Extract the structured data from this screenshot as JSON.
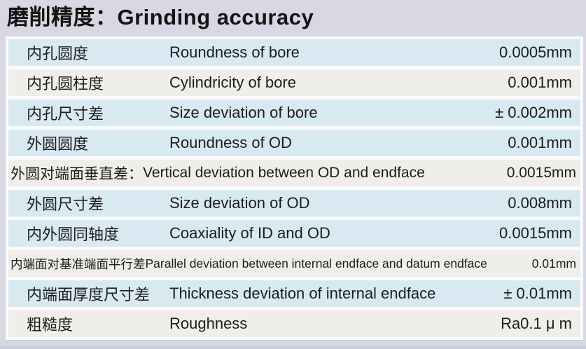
{
  "title": "磨削精度：Grinding accuracy",
  "colors": {
    "page_background": "#d7d8e3",
    "row_blue": "#d9e9f1",
    "row_gray": "#efeeeb",
    "table_frame": "#fbfbfb",
    "text": "#1c1c1c"
  },
  "table": {
    "rows": [
      {
        "cn": "内孔圆度",
        "en": "Roundness of bore",
        "value": "0.0005mm",
        "tone": "blue"
      },
      {
        "cn": "内孔圆柱度",
        "en": "Cylindricity of bore",
        "value": "0.001mm",
        "tone": "gray"
      },
      {
        "cn": "内孔尺寸差",
        "en": "Size deviation of bore",
        "value": "± 0.002mm",
        "tone": "blue"
      },
      {
        "cn": "外圆圆度",
        "en": "Roundness of OD",
        "value": "0.001mm",
        "tone": "blue"
      },
      {
        "cn": "外圆对端面垂直差：",
        "en": "Vertical deviation between OD and endface",
        "value": "0.0015mm",
        "tone": "gray"
      },
      {
        "cn": "外圆尺寸差",
        "en": "Size deviation of OD",
        "value": "0.008mm",
        "tone": "blue"
      },
      {
        "cn": "内外圆同轴度",
        "en": "Coaxiality of ID and OD",
        "value": "0.0015mm",
        "tone": "blue"
      },
      {
        "cn": "内端面对基准端面平行差",
        "en": "Parallel deviation between internal endface and datum endface",
        "value": "0.01mm",
        "tone": "gray"
      },
      {
        "cn": "内端面厚度尺寸差",
        "en": "Thickness deviation of internal endface",
        "value": "± 0.01mm",
        "tone": "blue"
      },
      {
        "cn": "粗糙度",
        "en": "Roughness",
        "value": "Ra0.1 μ m",
        "tone": "gray"
      }
    ]
  }
}
